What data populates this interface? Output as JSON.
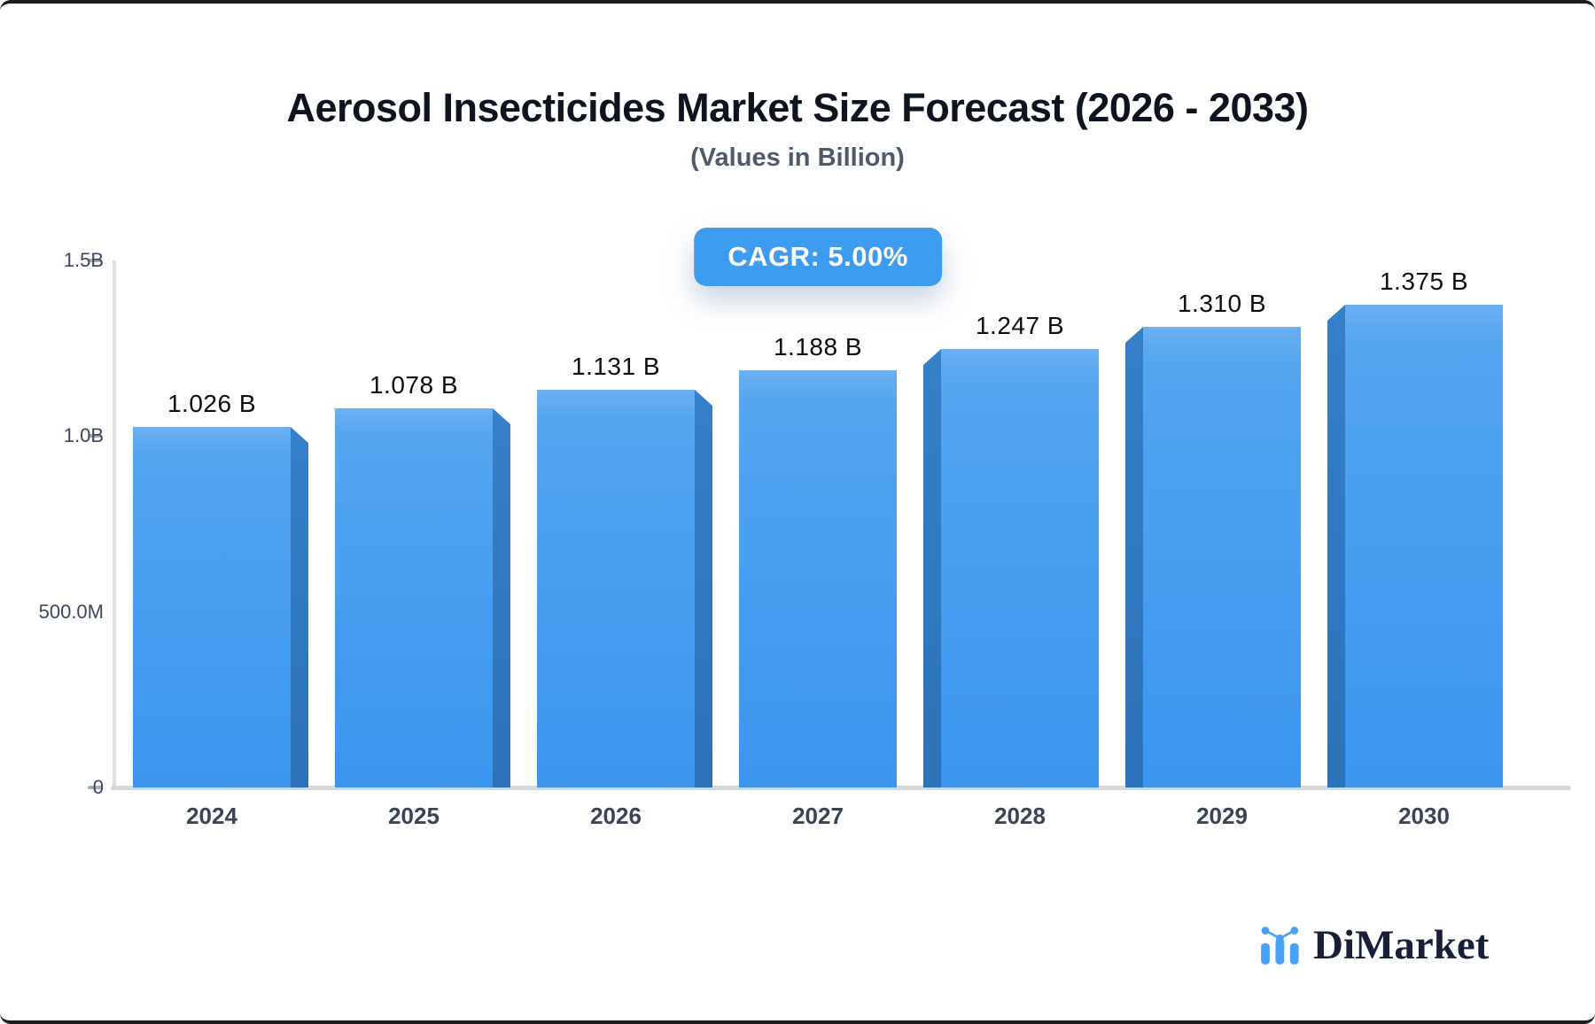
{
  "header": {
    "title": "Aerosol Insecticides Market Size Forecast (2026 - 2033)",
    "subtitle": "(Values in Billion)"
  },
  "badge": {
    "label": "CAGR: 5.00%"
  },
  "brand": {
    "name": "DiMarket",
    "icon": "mini-bar-line-chart-icon"
  },
  "colors": {
    "bar_front_top": "#6cb0f2",
    "bar_front_bottom": "#3b96ef",
    "bar_side": "#2c72b8",
    "badge_bg": "#3e9cf0",
    "brand_blue": "#4aa0f5",
    "title_text": "#0e1320",
    "axis_text": "#3d4759",
    "baseline_gray": "#d3d8dd"
  },
  "chart_data": {
    "type": "bar",
    "title": "Aerosol Insecticides Market Size Forecast (2026 - 2033)",
    "subtitle": "(Values in Billion)",
    "categories": [
      "2024",
      "2025",
      "2026",
      "2027",
      "2028",
      "2029",
      "2030"
    ],
    "values": [
      1.026,
      1.078,
      1.131,
      1.188,
      1.247,
      1.31,
      1.375
    ],
    "value_labels": [
      "1.026 B",
      "1.078 B",
      "1.131 B",
      "1.188 B",
      "1.247 B",
      "1.310 B",
      "1.375 B"
    ],
    "unit": "B",
    "xlabel": "",
    "ylabel": "",
    "ylim": [
      0,
      1.5
    ],
    "yticks": [
      {
        "label": "1.5B",
        "value": 1.5,
        "dash": true
      },
      {
        "label": "1.0B",
        "value": 1.0,
        "dash": true
      },
      {
        "label": "500.0M",
        "value": 0.5,
        "dash": false
      },
      {
        "label": "0",
        "value": 0,
        "dash": true
      }
    ],
    "grid": false,
    "legend": false,
    "annotations": [
      "CAGR: 5.00%"
    ]
  }
}
